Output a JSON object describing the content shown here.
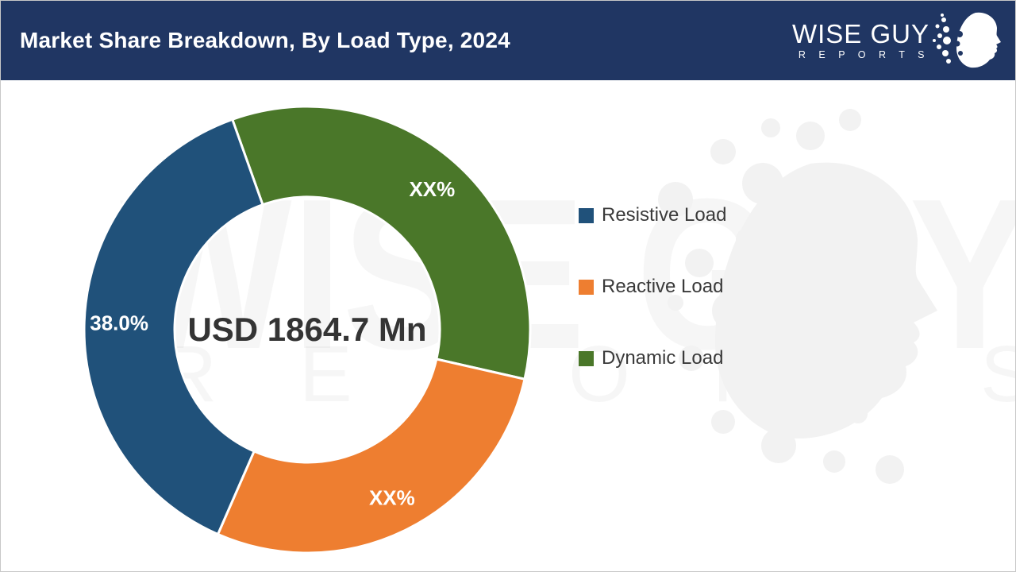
{
  "header": {
    "title": "Market Share Breakdown, By Load Type, 2024",
    "logo": {
      "line1": "WISE GUY",
      "line2": "R E P O R T S"
    }
  },
  "watermark": {
    "big_text": "WISE GUY",
    "sub_text": "R E P O R T S"
  },
  "chart_data": {
    "type": "pie",
    "donut": true,
    "title": "Market Share Breakdown, By Load Type, 2024",
    "center_label": "USD 1864.7 Mn",
    "start_angle_deg": -19.6,
    "direction": "clockwise",
    "slices": [
      {
        "name": "Dynamic Load",
        "value": 34,
        "label": "XX%",
        "color": "#4A7729"
      },
      {
        "name": "Reactive Load",
        "value": 28,
        "label": "XX%",
        "color": "#EE7E30"
      },
      {
        "name": "Resistive Load",
        "value": 38,
        "label": "38.0%",
        "color": "#20517A"
      }
    ],
    "legend": [
      {
        "label": "Resistive Load",
        "color": "#20517A"
      },
      {
        "label": "Reactive Load",
        "color": "#EE7E30"
      },
      {
        "label": "Dynamic Load",
        "color": "#4A7729"
      }
    ],
    "legend_position": "right"
  },
  "colors": {
    "header_bg": "#203663",
    "center_text": "#343434",
    "slice_label": "#FFFFFF"
  }
}
